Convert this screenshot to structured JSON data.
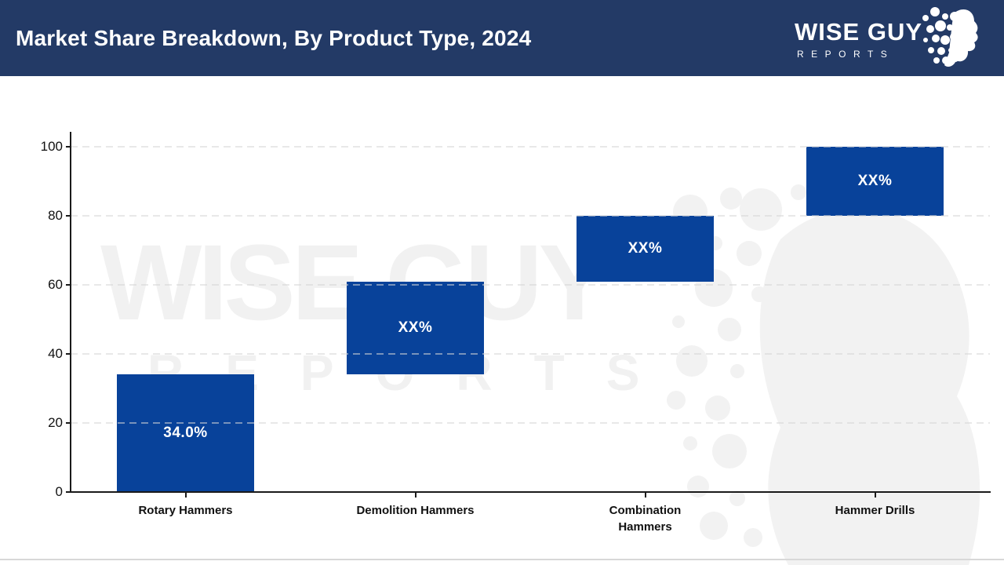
{
  "header": {
    "title": "Market Share Breakdown, By Product Type, 2024",
    "logo": {
      "line1": "WISE GUY",
      "line2": "REPORTS"
    }
  },
  "watermark": {
    "line1": "WISE GUY",
    "line2": "REPORTS"
  },
  "colors": {
    "header_bg": "#233a66",
    "bar_fill": "#08429a",
    "bar_label_text": "#ffffff",
    "grid_line": "#d6d6d6",
    "axis_text": "#111111",
    "watermark": "#f1f1f1"
  },
  "chart_data": {
    "type": "bar",
    "subtype": "waterfall",
    "title": "Market Share Breakdown, By Product Type, 2024",
    "categories": [
      "Rotary Hammers",
      "Demolition Hammers",
      "Combination\nHammers",
      "Hammer Drills"
    ],
    "bars": [
      {
        "category": "Rotary Hammers",
        "start": 0,
        "end": 34,
        "value": 34.0,
        "label": "34.0%"
      },
      {
        "category": "Demolition Hammers",
        "start": 34,
        "end": 61,
        "value": 27.0,
        "label": "XX%"
      },
      {
        "category": "Combination Hammers",
        "start": 61,
        "end": 80,
        "value": 19.0,
        "label": "XX%"
      },
      {
        "category": "Hammer Drills",
        "start": 80,
        "end": 100,
        "value": 20.0,
        "label": "XX%"
      }
    ],
    "xlabel": "",
    "ylabel": "",
    "ylim": [
      0,
      100
    ],
    "yticks": [
      0,
      20,
      40,
      60,
      80,
      100
    ],
    "grid": "dashed-horizontal",
    "legend": "none"
  }
}
